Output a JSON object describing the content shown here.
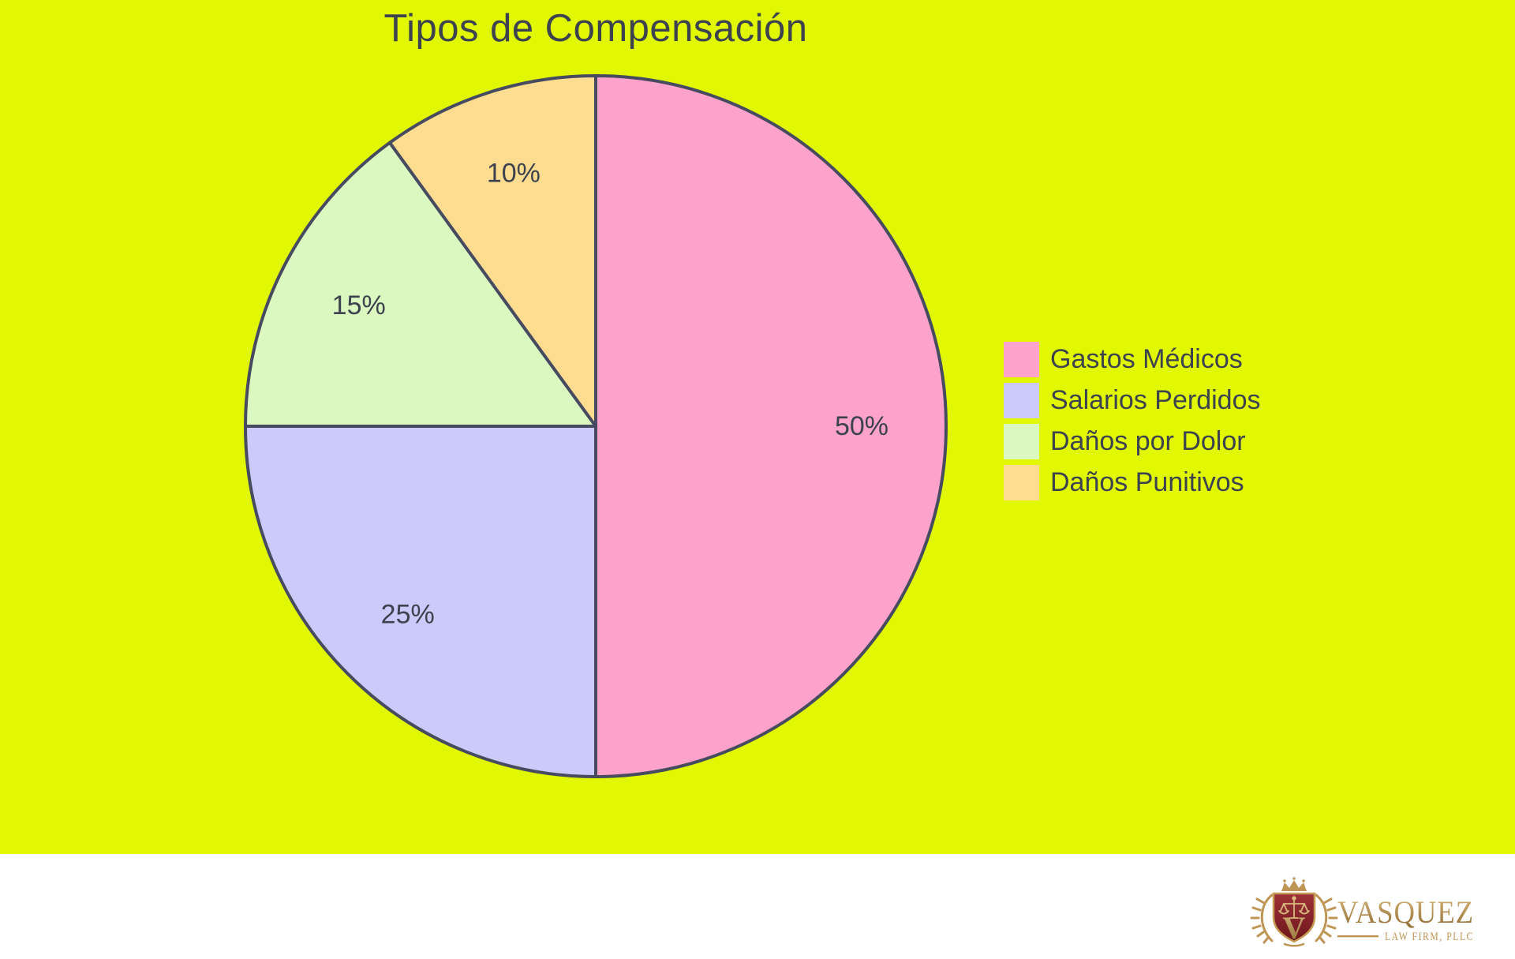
{
  "chart_data": {
    "type": "pie",
    "title": "Tipos de Compensación",
    "labels": [
      "Gastos Médicos",
      "Salarios Perdidos",
      "Daños por Dolor",
      "Daños Punitivos"
    ],
    "values": [
      50,
      25,
      15,
      10
    ],
    "slice_labels": [
      "50%",
      "25%",
      "15%",
      "10%"
    ],
    "colors": [
      "#FDA3CB",
      "#CBCAFB",
      "#DBF8C0",
      "#FEDD90"
    ],
    "stroke_color": "#464B5F",
    "label_color": "#3C424E",
    "background_color": "#E1F802",
    "start_angle_deg": 0,
    "direction": "clockwise",
    "legend_position": "right",
    "grid": false
  },
  "branding": {
    "name": "VASQUEZ",
    "subtitle": "LAW FIRM, PLLC",
    "monogram": "V",
    "gold_light": "#D9BA7E",
    "gold_dark": "#8E6B33",
    "gold_mid": "#BE9554",
    "maroon_light": "#9C3238",
    "maroon_dark": "#6E161B"
  }
}
